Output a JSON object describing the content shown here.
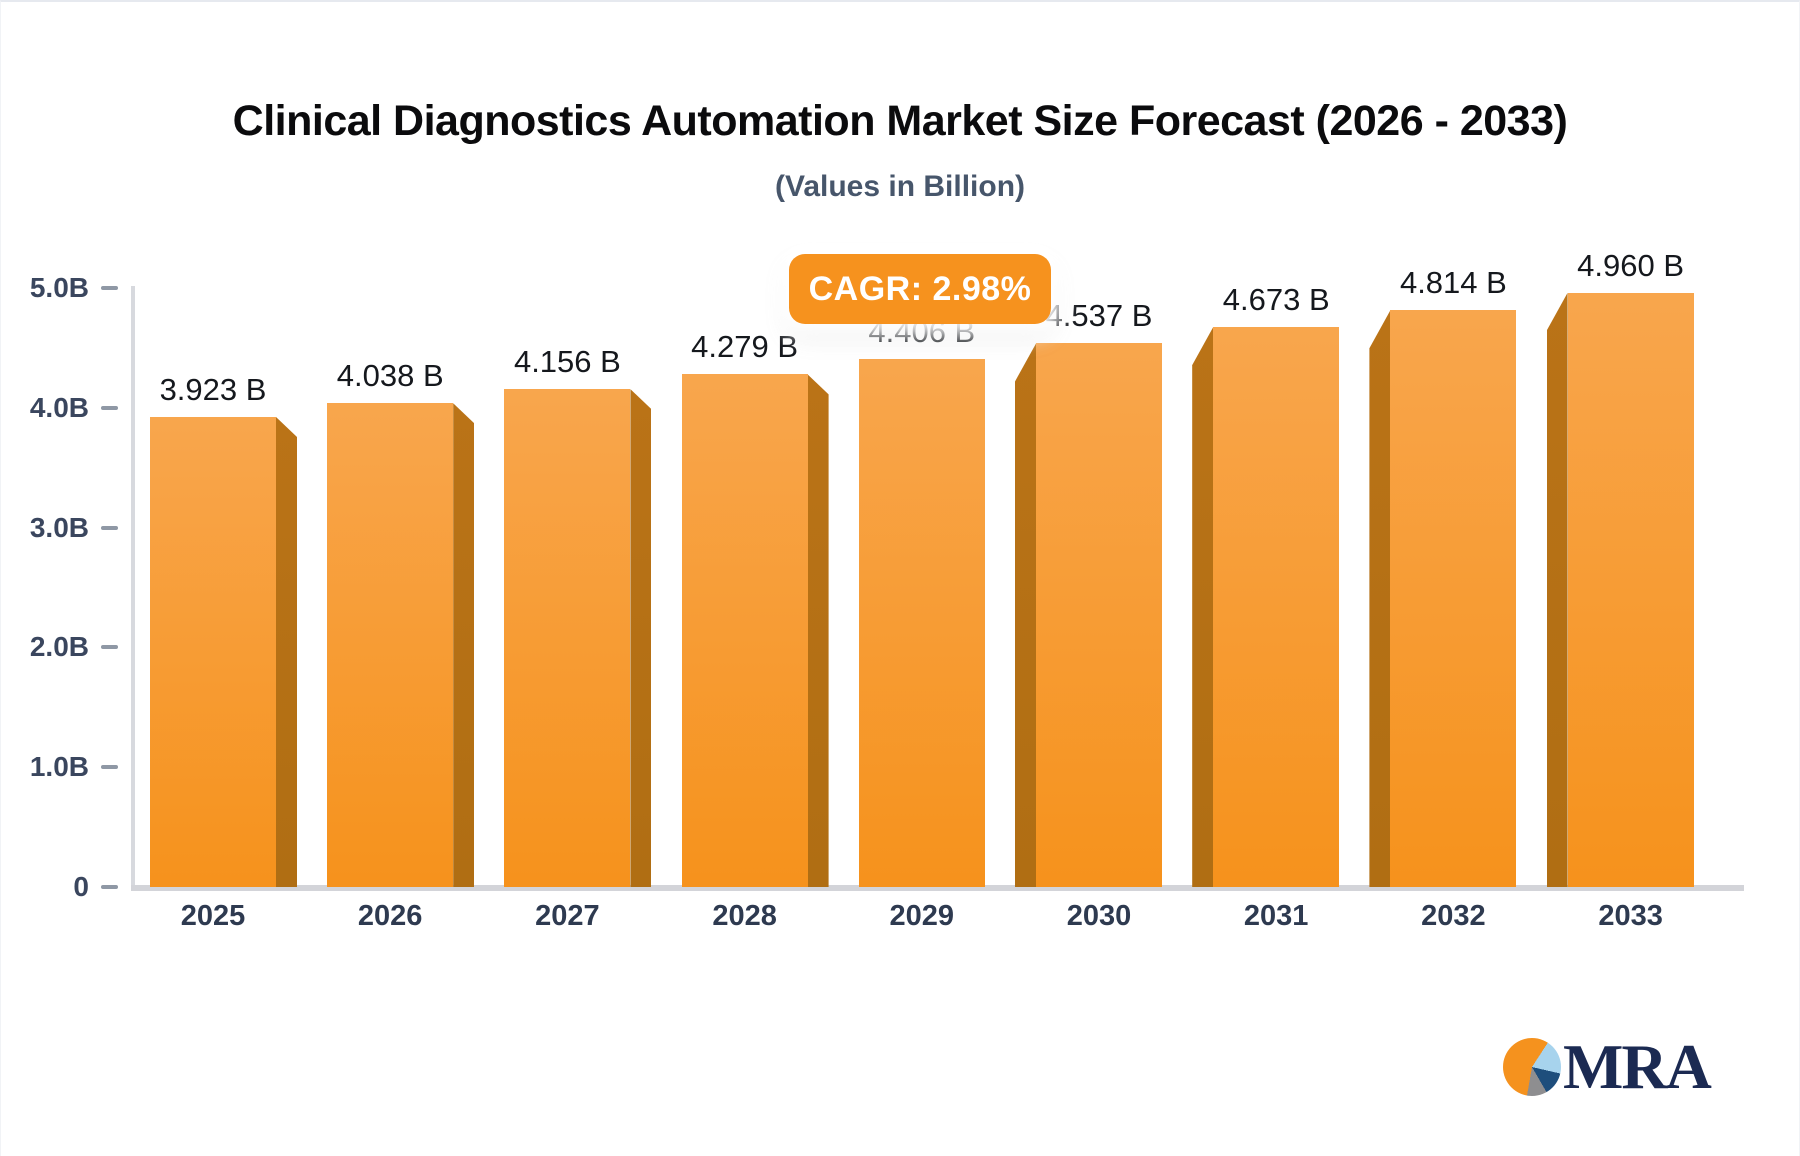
{
  "chart_data": {
    "type": "bar",
    "title": "Clinical Diagnostics Automation Market Size Forecast (2026 - 2033)",
    "subtitle": "(Values in Billion)",
    "categories": [
      "2025",
      "2026",
      "2027",
      "2028",
      "2029",
      "2030",
      "2031",
      "2032",
      "2033"
    ],
    "values": [
      3.923,
      4.038,
      4.156,
      4.279,
      4.406,
      4.537,
      4.673,
      4.814,
      4.96
    ],
    "bar_labels": [
      "3.923 B",
      "4.038 B",
      "4.156 B",
      "4.279 B",
      "4.406 B",
      "4.537 B",
      "4.673 B",
      "4.814 B",
      "4.960 B"
    ],
    "unit": "B",
    "xlabel": "",
    "ylabel": "",
    "ylim": [
      0,
      5
    ],
    "grid": false,
    "legend": "none",
    "y_ticks": [
      {
        "label": "5.0B",
        "value": 5.0
      },
      {
        "label": "4.0B",
        "value": 4.0
      },
      {
        "label": "3.0B",
        "value": 3.0
      },
      {
        "label": "2.0B",
        "value": 2.0
      },
      {
        "label": "1.0B",
        "value": 1.0
      },
      {
        "label": "0",
        "value": 0.0
      }
    ],
    "colors": {
      "bar_top": "#F8A64D",
      "bar_bottom": "#F6921C",
      "bar_side": "#BA7317",
      "axis_line": "#D7D9DE",
      "baseline": "#D3D4D9"
    }
  },
  "badge": {
    "text": "CAGR: 2.98%",
    "color": "#F6921E"
  },
  "logo": {
    "text": "MRA",
    "text_color": "#1B2A52",
    "pie_colors": {
      "orange": "#F5921E",
      "light_blue": "#A7D3ED",
      "navy": "#1E4E7C",
      "gray": "#8E8E90"
    }
  }
}
